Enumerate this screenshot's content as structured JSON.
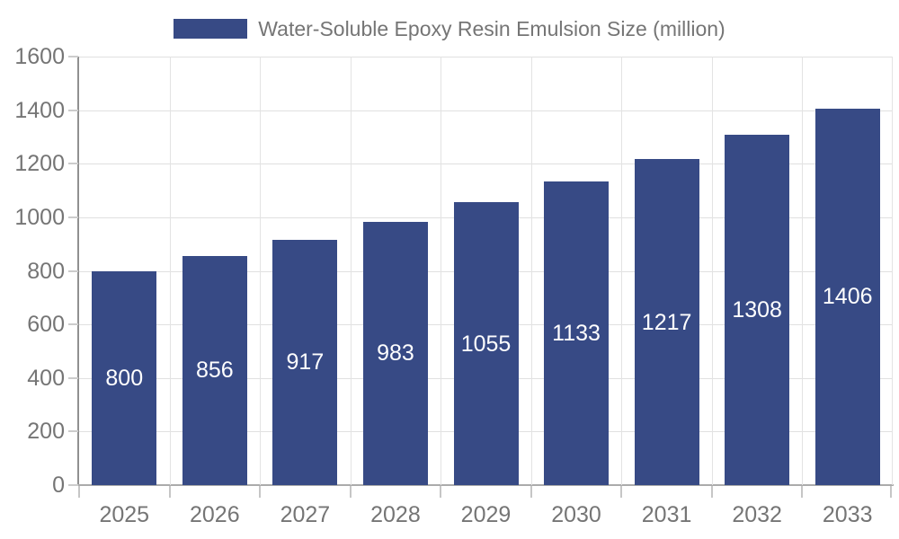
{
  "chart_data": {
    "type": "bar",
    "title": "Water-Soluble Epoxy Resin Emulsion Size (million)",
    "categories": [
      "2025",
      "2026",
      "2027",
      "2028",
      "2029",
      "2030",
      "2031",
      "2032",
      "2033"
    ],
    "values": [
      800,
      856,
      917,
      983,
      1055,
      1133,
      1217,
      1308,
      1406
    ],
    "xlabel": "",
    "ylabel": "",
    "ylim": [
      0,
      1600
    ],
    "yticks": [
      0,
      200,
      400,
      600,
      800,
      1000,
      1200,
      1400,
      1600
    ],
    "grid": true,
    "legend_position": "top",
    "value_labels": "inside-center"
  },
  "colors": {
    "bar": "#374A85",
    "legend_swatch": "#374A85",
    "value_label": "#ffffff",
    "axis_text": "#757575",
    "gridline": "#e0e0e0",
    "axis_line": "#999999",
    "background": "#ffffff"
  }
}
